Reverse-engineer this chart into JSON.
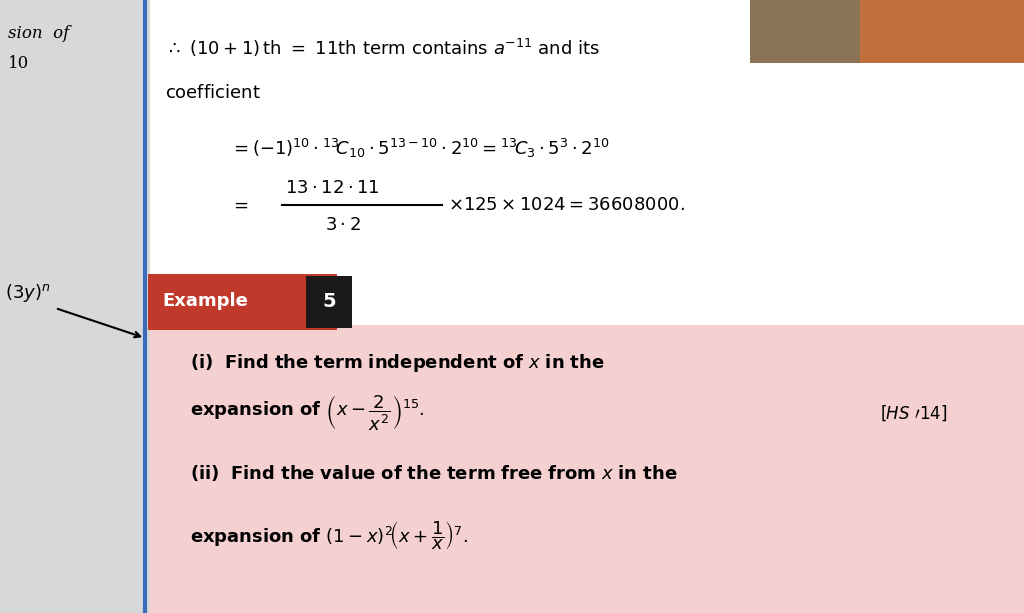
{
  "bg_color": "#f0f0f0",
  "page_bg": "#ffffff",
  "left_strip_color": "#c8c8c8",
  "example_box_color": "#c0392b",
  "example_highlight_color": "#f5c6c6",
  "line1": "\\therefore  (10+1)\\,\\mathrm{th} \\ = \\ 11\\mathrm{th\\ term\\ contains\\ }a^{-11}\\mathrm{\\ and\\ its}",
  "line2": "\\mathrm{coefficient}",
  "line3": "=(-1)^{10}\\cdot{}^{13}\\!C_{10}\\cdot 5^{13-10}\\cdot 2^{10}={}^{13}\\!C_3\\cdot 5^3\\cdot 2^{10}",
  "line4_num": "13\\cdot 12\\cdot 11",
  "line4_den": "3\\cdot 2",
  "line4_rest": "\\times 125\\times 1024=36608000.",
  "left_top_text1": "sion  of",
  "left_top_text2": "10",
  "left_bottom_text": "(3y)^n",
  "example_label": "Example",
  "example_num": "5",
  "part_i": "(i)  Find the term independent of $x$ in the",
  "part_i_2": "expansion of $\\left(x-\\dfrac{2}{x^2}\\right)^{15}$.",
  "part_i_ref": "[HS '14]",
  "part_ii": "(ii)  Find the value of the term free from $x$ in the",
  "part_ii_2": "expansion of $(1-x)^2\\!\\left(x+\\dfrac{1}{x}\\right)^7$."
}
